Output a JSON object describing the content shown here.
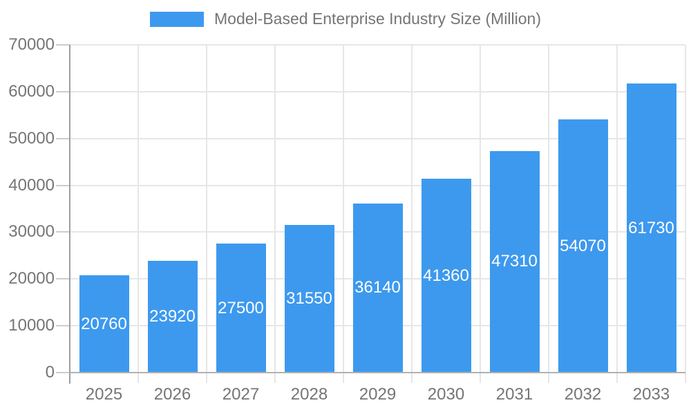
{
  "legend": {
    "label": "Model-Based Enterprise Industry Size (Million)"
  },
  "colors": {
    "bar": "#3d99ee",
    "gridline": "#e6e6e6",
    "tick": "#cccccc",
    "y_axis_line": "#9e9e9e",
    "baseline": "#b1b1b1",
    "axis_text": "#757575",
    "value_text": "#ffffff",
    "background": "#ffffff"
  },
  "chart_data": {
    "type": "bar",
    "title": "Model-Based Enterprise Industry Size (Million)",
    "categories": [
      "2025",
      "2026",
      "2027",
      "2028",
      "2029",
      "2030",
      "2031",
      "2032",
      "2033"
    ],
    "values": [
      20760,
      23920,
      27500,
      31550,
      36140,
      41360,
      47310,
      54070,
      61730
    ],
    "xlabel": "",
    "ylabel": "",
    "ylim": [
      0,
      70000
    ],
    "yticks": [
      0,
      10000,
      20000,
      30000,
      40000,
      50000,
      60000,
      70000
    ],
    "grid": true,
    "legend_position": "top-center",
    "value_labels": "inside-center-white",
    "bar_color": "#3d99ee"
  }
}
